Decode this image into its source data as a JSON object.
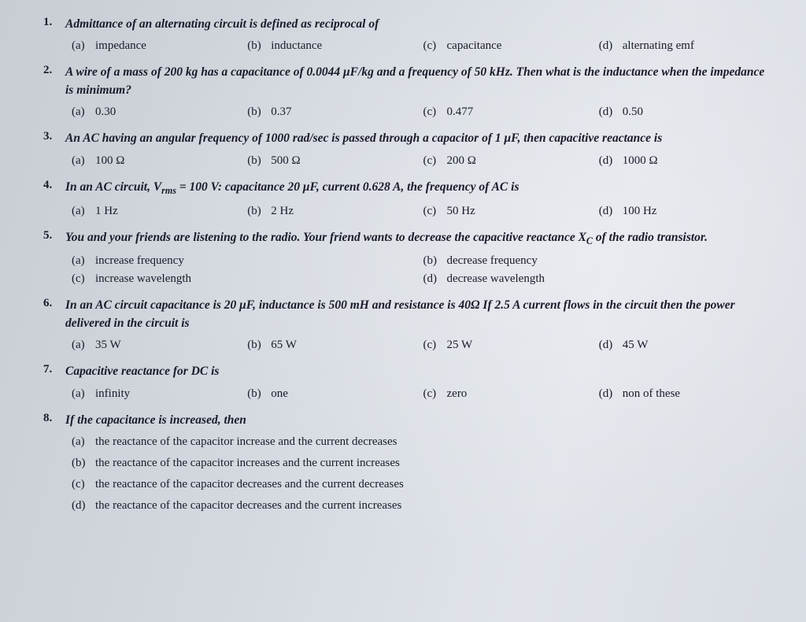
{
  "questions": [
    {
      "num": "1.",
      "text": "Admittance of an alternating circuit is defined as reciprocal of",
      "options": [
        {
          "label": "(a)",
          "text": "impedance"
        },
        {
          "label": "(b)",
          "text": "inductance"
        },
        {
          "label": "(c)",
          "text": "capacitance"
        },
        {
          "label": "(d)",
          "text": "alternating emf"
        }
      ]
    },
    {
      "num": "2.",
      "text": "A wire of a mass of 200 kg has a capacitance of 0.0044 μF/kg and a frequency of 50 kHz. Then what is the inductance when the impedance is minimum?",
      "options": [
        {
          "label": "(a)",
          "text": "0.30"
        },
        {
          "label": "(b)",
          "text": "0.37"
        },
        {
          "label": "(c)",
          "text": "0.477"
        },
        {
          "label": "(d)",
          "text": "0.50"
        }
      ]
    },
    {
      "num": "3.",
      "text": "An AC having an angular frequency of 1000 rad/sec is passed through a capacitor of 1 μF, then capacitive reactance is",
      "options": [
        {
          "label": "(a)",
          "text": "100 Ω"
        },
        {
          "label": "(b)",
          "text": "500 Ω"
        },
        {
          "label": "(c)",
          "text": "200 Ω"
        },
        {
          "label": "(d)",
          "text": "1000 Ω"
        }
      ]
    },
    {
      "num": "4.",
      "text_parts": [
        "In an AC circuit, V",
        "rms",
        " = 100 V: capacitance 20 μF, current 0.628 A, the frequency of AC is"
      ],
      "options": [
        {
          "label": "(a)",
          "text": "1 Hz"
        },
        {
          "label": "(b)",
          "text": "2 Hz"
        },
        {
          "label": "(c)",
          "text": "50 Hz"
        },
        {
          "label": "(d)",
          "text": "100 Hz"
        }
      ]
    },
    {
      "num": "5.",
      "text_parts": [
        "You and your friends are listening to the radio. Your friend wants to decrease the capacitive reactance X",
        "C",
        " of the radio transistor."
      ],
      "options": [
        {
          "label": "(a)",
          "text": "increase frequency"
        },
        {
          "label": "(b)",
          "text": "decrease frequency"
        },
        {
          "label": "(c)",
          "text": "increase wavelength"
        },
        {
          "label": "(d)",
          "text": "decrease wavelength"
        }
      ]
    },
    {
      "num": "6.",
      "text": "In an AC circuit capacitance is 20 μF, inductance is 500 mH and resistance is 40Ω If 2.5 A current flows in the circuit then the power delivered in the circuit is",
      "options": [
        {
          "label": "(a)",
          "text": "35 W"
        },
        {
          "label": "(b)",
          "text": "65 W"
        },
        {
          "label": "(c)",
          "text": "25 W"
        },
        {
          "label": "(d)",
          "text": "45 W"
        }
      ]
    },
    {
      "num": "7.",
      "text": "Capacitive reactance for DC is",
      "options": [
        {
          "label": "(a)",
          "text": "infinity"
        },
        {
          "label": "(b)",
          "text": "one"
        },
        {
          "label": "(c)",
          "text": "zero"
        },
        {
          "label": "(d)",
          "text": "non of these"
        }
      ]
    },
    {
      "num": "8.",
      "text": "If the capacitance is increased, then",
      "options": [
        {
          "label": "(a)",
          "text": "the reactance of the capacitor increase and the current decreases"
        },
        {
          "label": "(b)",
          "text": "the reactance of the capacitor increases and the current increases"
        },
        {
          "label": "(c)",
          "text": "the reactance of the capacitor decreases and the current decreases"
        },
        {
          "label": "(d)",
          "text": "the reactance of the capacitor decreases and the current increases"
        }
      ]
    }
  ]
}
